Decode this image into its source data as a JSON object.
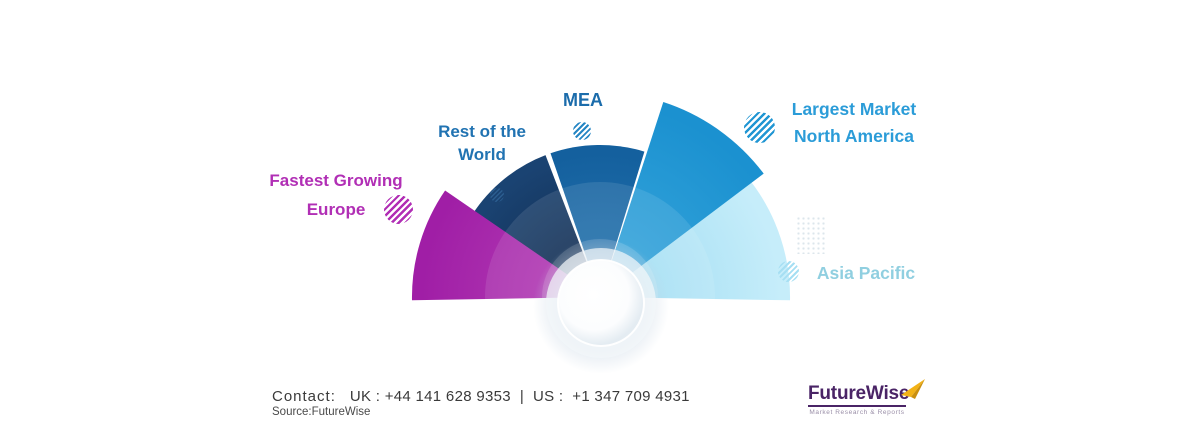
{
  "chart_data": {
    "type": "pie",
    "subtype": "fan-gauge-infographic",
    "title": "",
    "center": [
      600,
      297
    ],
    "legend_position": "around",
    "grid": false,
    "segments": [
      {
        "key": "rest-of-world",
        "label": "Rest of the World",
        "annotation": "",
        "start_angle": 111,
        "end_angle": 147,
        "radius": 152,
        "color": "#16365f",
        "color_inner": "#122c50",
        "color_outer": "#1a4372"
      },
      {
        "key": "europe",
        "label": "Europe",
        "annotation": "Fastest Growing",
        "start_angle": 145.5,
        "end_angle": 181,
        "radius": 188,
        "color": "#a623aa",
        "color_inner": "#b13ab3",
        "color_outer": "#a01ea6"
      },
      {
        "key": "mea",
        "label": "MEA",
        "annotation": "",
        "start_angle": 73,
        "end_angle": 109,
        "radius": 152,
        "color": "#1b6aa6",
        "color_inner": "#2271ac",
        "color_outer": "#14609e"
      },
      {
        "key": "asia-pacific",
        "label": "Asia Pacific",
        "annotation": "",
        "start_angle": -1,
        "end_angle": 47,
        "radius": 190,
        "color": "#aee3f6",
        "color_inner": "#a3def3",
        "color_outer": "#c6edfa"
      },
      {
        "key": "north-america",
        "label": "North America",
        "annotation": "Largest Market",
        "start_angle": 37,
        "end_angle": 72,
        "radius": 205,
        "color": "#1f97d4",
        "color_inner": "#33a3da",
        "color_outer": "#1b91d0"
      }
    ]
  },
  "labels": {
    "europe": {
      "line1": "Fastest Growing",
      "line2": "Europe",
      "color": "#b12fb5",
      "dot_color": "#b12fb5"
    },
    "rest_of_world": {
      "line1": "Rest of the",
      "line2": "World",
      "color": "#2173b2",
      "dot_color": "#2b5d8f"
    },
    "mea": {
      "line1": "MEA",
      "color": "#1b6cab",
      "dot_color": "#2586c4"
    },
    "north_america": {
      "line1": "Largest Market",
      "line2": "North America",
      "color": "#2b9cd8",
      "dot_color": "#2196d3"
    },
    "asia_pacific": {
      "line1": "Asia Pacific",
      "color": "#90cfe0",
      "dot_color": "#a6dff3"
    }
  },
  "footer": {
    "contact_label": "Contact:",
    "contact_value": "UK : +44 141 628 9353  |  US :  +1 347 709 4931",
    "source": "Source:FutureWise"
  },
  "logo": {
    "name": "FutureWise",
    "tagline": "Market Research & Reports",
    "text_color": "#4a2466",
    "arrow_color": "#f2b216",
    "arrow_shade_color": "#c98f0f"
  }
}
